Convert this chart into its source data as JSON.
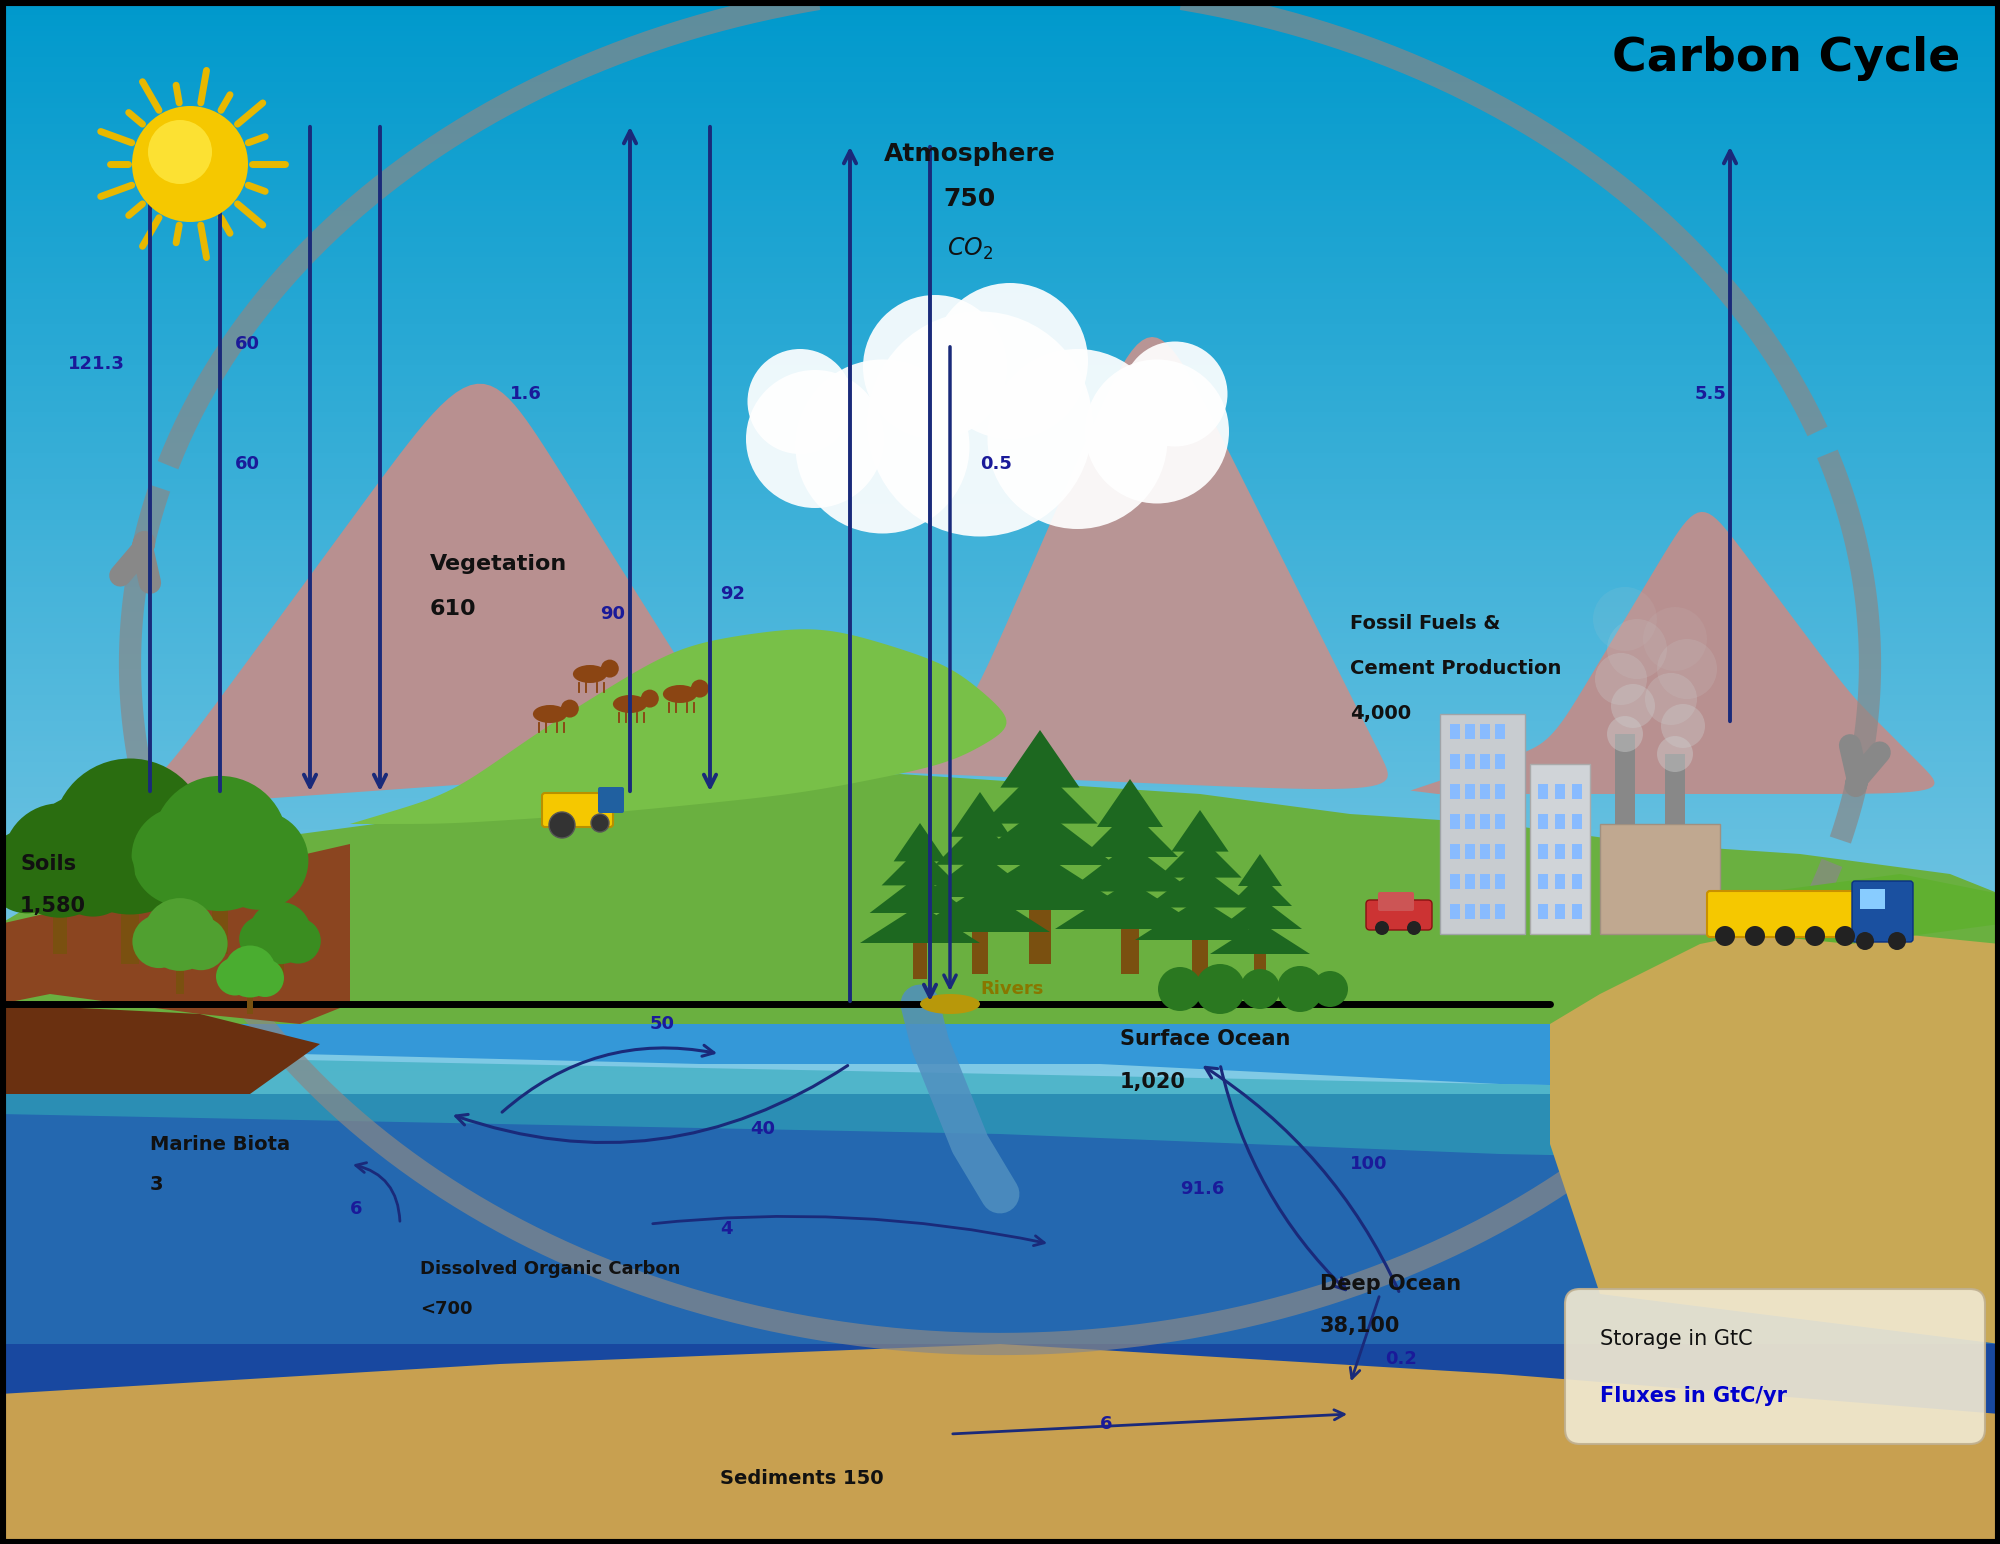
{
  "title": "Carbon Cycle",
  "title_fontsize": 34,
  "title_color": "#000000",
  "legend_storage": "Storage in GtC",
  "legend_flux": "Fluxes in GtC/yr",
  "sky_top": "#0099cc",
  "sky_bottom": "#b8dff0",
  "mountain_color": "#b89a90",
  "hill_color": "#72b84a",
  "hill_dark": "#5a9a38",
  "soil_color": "#8B5530",
  "ocean_top_color": "#3a9ad4",
  "ocean_mid_color": "#2070b8",
  "ocean_deep_color": "#1a4fa0",
  "ocean_surface_stripe": "#40b0c0",
  "sediment_color": "#c8a050",
  "sand_color": "#c8a050",
  "flux_color": "#1a1a99",
  "storage_color": "#111111",
  "arrow_color": "#1a2a7a",
  "large_arrow_color": "#888888",
  "river_color": "#5090c0",
  "smoke_color": "#cccccc",
  "sun_color": "#f5c800",
  "sun_ray_color": "#f5c800"
}
